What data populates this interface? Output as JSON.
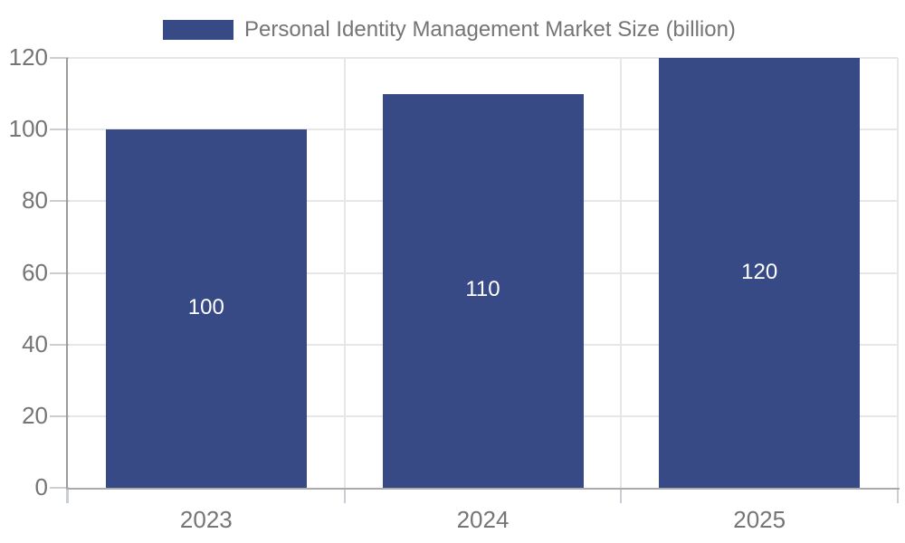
{
  "chart_data": {
    "type": "bar",
    "title": "Personal Identity Management Market Size (billion)",
    "legend_position": "top",
    "categories": [
      "2023",
      "2024",
      "2025"
    ],
    "values": [
      100,
      110,
      120
    ],
    "data_labels": [
      "100",
      "110",
      "120"
    ],
    "yticks": [
      0,
      20,
      40,
      60,
      80,
      100,
      120
    ],
    "ylim": [
      0,
      120
    ],
    "xlabel": "",
    "ylabel": "",
    "grid": true,
    "bar_color": "#374a85",
    "data_label_color": "#ffffff",
    "axis_text_color": "#757575",
    "grid_color": "#e7e7e7",
    "y_axis_line_color": "#9c9c9c",
    "x_axis_line_color": "#ababab",
    "tick_color": "#c9cdd4",
    "background_color": "#ffffff"
  }
}
